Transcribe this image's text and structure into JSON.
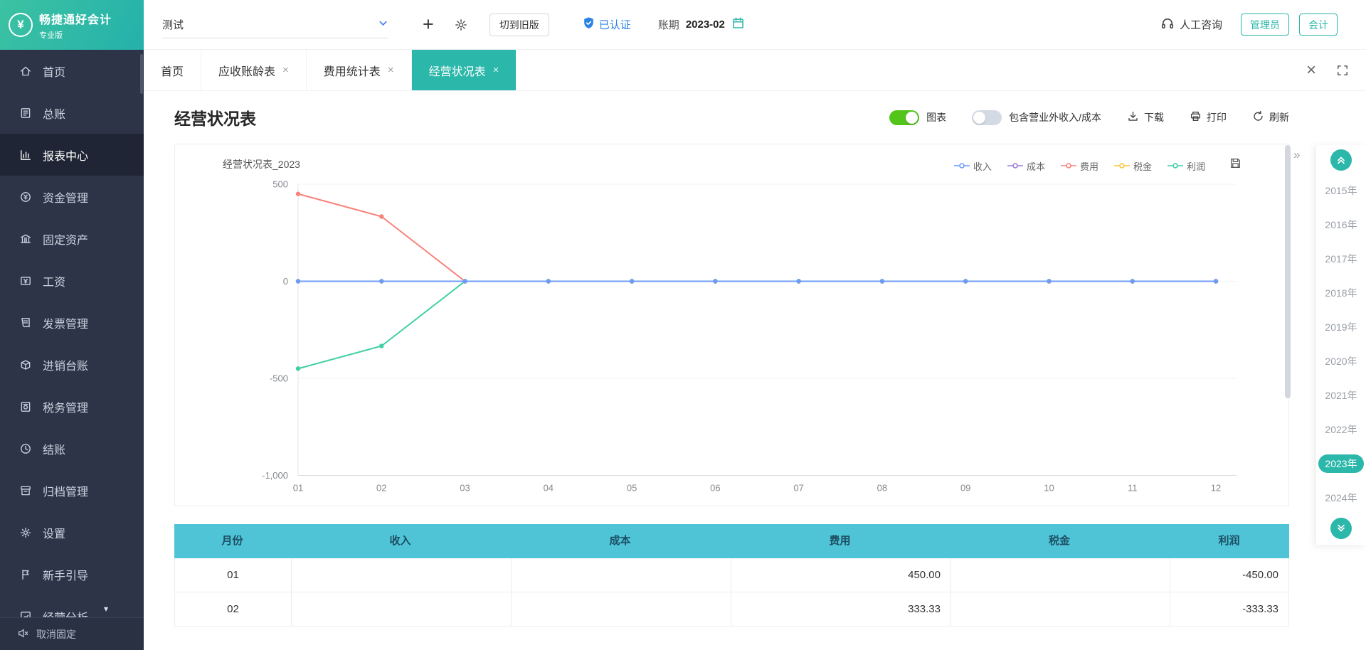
{
  "brand": {
    "name": "畅捷通好会计",
    "edition": "专业版"
  },
  "topbar": {
    "workspace": "测试",
    "switch_old_label": "切到旧版",
    "certified_label": "已认证",
    "period_label": "账期",
    "period_value": "2023-02",
    "consult_label": "人工咨询",
    "admin_label": "管理员",
    "accountant_label": "会计"
  },
  "sidebar": {
    "items": [
      {
        "name": "home",
        "label": "首页",
        "active": false
      },
      {
        "name": "general-ledger",
        "label": "总账",
        "active": false
      },
      {
        "name": "report-center",
        "label": "报表中心",
        "active": true
      },
      {
        "name": "fund-management",
        "label": "资金管理",
        "active": false
      },
      {
        "name": "fixed-assets",
        "label": "固定资产",
        "active": false
      },
      {
        "name": "payroll",
        "label": "工资",
        "active": false
      },
      {
        "name": "invoice-management",
        "label": "发票管理",
        "active": false
      },
      {
        "name": "purchase-sale-ledger",
        "label": "进销台账",
        "active": false
      },
      {
        "name": "tax-management",
        "label": "税务管理",
        "active": false
      },
      {
        "name": "closing",
        "label": "结账",
        "active": false
      },
      {
        "name": "archive-management",
        "label": "归档管理",
        "active": false
      },
      {
        "name": "settings",
        "label": "设置",
        "active": false
      },
      {
        "name": "beginner-guide",
        "label": "新手引导",
        "active": false
      },
      {
        "name": "business-analysis",
        "label": "经营分析",
        "active": false
      }
    ],
    "unpin_label": "取消固定"
  },
  "tabs": [
    {
      "name": "home",
      "label": "首页",
      "closable": false,
      "active": false
    },
    {
      "name": "receivable-aging",
      "label": "应收账龄表",
      "closable": true,
      "active": false
    },
    {
      "name": "expense-statistics",
      "label": "费用统计表",
      "closable": true,
      "active": false
    },
    {
      "name": "operating-status",
      "label": "经营状况表",
      "closable": true,
      "active": true
    }
  ],
  "page": {
    "title": "经营状况表",
    "chart_toggle_label": "图表",
    "chart_toggle_on": true,
    "include_toggle_label": "包含营业外收入/成本",
    "include_toggle_on": false,
    "download_label": "下载",
    "print_label": "打印",
    "refresh_label": "刷新"
  },
  "chart_data": {
    "type": "line",
    "title": "经营状况表_2023",
    "x": [
      "01",
      "02",
      "03",
      "04",
      "05",
      "06",
      "07",
      "08",
      "09",
      "10",
      "11",
      "12"
    ],
    "ylim": [
      -1000,
      500
    ],
    "yticks": [
      500,
      0,
      -500,
      -1000
    ],
    "grid": true,
    "legend_position": "top-right",
    "series": [
      {
        "key": "income",
        "name": "收入",
        "color": "#6d9bf7",
        "values": [
          0,
          0,
          0,
          0,
          0,
          0,
          0,
          0,
          0,
          0,
          0,
          0
        ]
      },
      {
        "key": "cost",
        "name": "成本",
        "color": "#9e7bdd",
        "values": [
          0,
          0,
          0,
          0,
          0,
          0,
          0,
          0,
          0,
          0,
          0,
          0
        ]
      },
      {
        "key": "expense",
        "name": "费用",
        "color": "#f8827a",
        "values": [
          450,
          333.33,
          0,
          0,
          0,
          0,
          0,
          0,
          0,
          0,
          0,
          0
        ]
      },
      {
        "key": "tax",
        "name": "税金",
        "color": "#f8c53e",
        "values": [
          0,
          0,
          0,
          0,
          0,
          0,
          0,
          0,
          0,
          0,
          0,
          0
        ]
      },
      {
        "key": "profit",
        "name": "利润",
        "color": "#3ed0a5",
        "values": [
          -450,
          -333.33,
          0,
          0,
          0,
          0,
          0,
          0,
          0,
          0,
          0,
          0
        ]
      }
    ]
  },
  "table": {
    "columns": [
      "月份",
      "收入",
      "成本",
      "费用",
      "税金",
      "利润"
    ],
    "rows": [
      [
        "01",
        "",
        "",
        "450.00",
        "",
        "-450.00"
      ],
      [
        "02",
        "",
        "",
        "333.33",
        "",
        "-333.33"
      ]
    ]
  },
  "year_panel": {
    "years": [
      "2015年",
      "2016年",
      "2017年",
      "2018年",
      "2019年",
      "2020年",
      "2021年",
      "2022年",
      "2023年",
      "2024年"
    ],
    "selected": "2023年"
  },
  "colors": {
    "accent": "#2bb7a9",
    "table_header": "#4fc4d6",
    "toggle_on": "#52c41a",
    "certified_blue": "#2a82e4",
    "sidebar_bg": "#2d3447"
  }
}
